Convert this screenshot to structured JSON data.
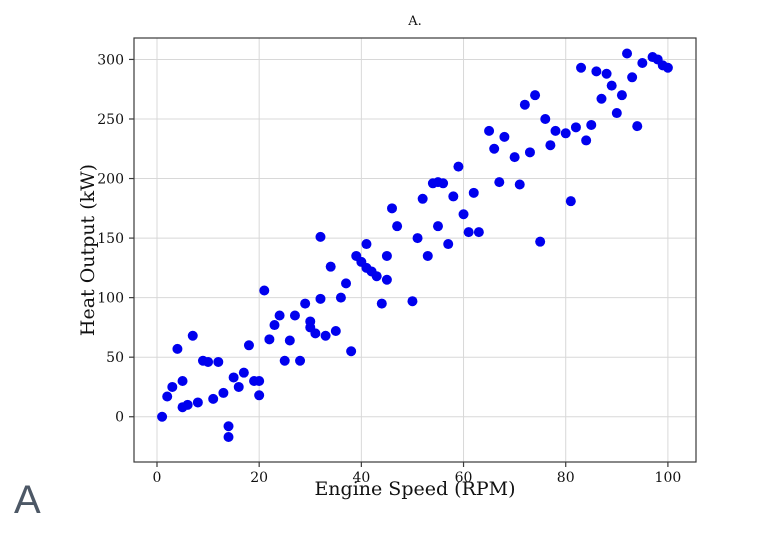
{
  "figure_label": "A",
  "chart_data": {
    "type": "scatter",
    "title": "A.",
    "xlabel": "Engine Speed (RPM)",
    "ylabel": "Heat Output (kW)",
    "xlim": [
      -4.5,
      105.5
    ],
    "ylim": [
      -38,
      318
    ],
    "xticks": [
      0,
      20,
      40,
      60,
      80,
      100
    ],
    "yticks": [
      0,
      50,
      100,
      150,
      200,
      250,
      300
    ],
    "grid": true,
    "grid_color": "#d8d8d8",
    "spine_color": "#3a3a3a",
    "point_color": "#0000ee",
    "legend": "none",
    "points": [
      [
        1,
        0
      ],
      [
        2,
        17
      ],
      [
        3,
        25
      ],
      [
        4,
        57
      ],
      [
        5,
        8
      ],
      [
        5,
        30
      ],
      [
        6,
        10
      ],
      [
        7,
        68
      ],
      [
        8,
        12
      ],
      [
        9,
        47
      ],
      [
        10,
        46
      ],
      [
        11,
        15
      ],
      [
        12,
        46
      ],
      [
        13,
        20
      ],
      [
        14,
        -8
      ],
      [
        14,
        -17
      ],
      [
        15,
        33
      ],
      [
        16,
        25
      ],
      [
        17,
        37
      ],
      [
        18,
        60
      ],
      [
        19,
        30
      ],
      [
        20,
        30
      ],
      [
        20,
        18
      ],
      [
        21,
        106
      ],
      [
        22,
        65
      ],
      [
        23,
        77
      ],
      [
        24,
        85
      ],
      [
        25,
        47
      ],
      [
        26,
        64
      ],
      [
        27,
        85
      ],
      [
        28,
        47
      ],
      [
        29,
        95
      ],
      [
        30,
        75
      ],
      [
        30,
        80
      ],
      [
        31,
        70
      ],
      [
        32,
        151
      ],
      [
        32,
        99
      ],
      [
        33,
        68
      ],
      [
        34,
        126
      ],
      [
        35,
        72
      ],
      [
        36,
        100
      ],
      [
        37,
        112
      ],
      [
        38,
        55
      ],
      [
        39,
        135
      ],
      [
        40,
        130
      ],
      [
        41,
        145
      ],
      [
        41,
        125
      ],
      [
        42,
        122
      ],
      [
        43,
        118
      ],
      [
        44,
        95
      ],
      [
        45,
        135
      ],
      [
        45,
        115
      ],
      [
        46,
        175
      ],
      [
        47,
        160
      ],
      [
        50,
        97
      ],
      [
        51,
        150
      ],
      [
        52,
        183
      ],
      [
        53,
        135
      ],
      [
        54,
        196
      ],
      [
        55,
        197
      ],
      [
        55,
        160
      ],
      [
        56,
        196
      ],
      [
        57,
        145
      ],
      [
        58,
        185
      ],
      [
        59,
        210
      ],
      [
        60,
        170
      ],
      [
        61,
        155
      ],
      [
        62,
        188
      ],
      [
        63,
        155
      ],
      [
        65,
        240
      ],
      [
        66,
        225
      ],
      [
        67,
        197
      ],
      [
        68,
        235
      ],
      [
        70,
        218
      ],
      [
        71,
        195
      ],
      [
        72,
        262
      ],
      [
        73,
        222
      ],
      [
        74,
        270
      ],
      [
        75,
        147
      ],
      [
        76,
        250
      ],
      [
        77,
        228
      ],
      [
        78,
        240
      ],
      [
        80,
        238
      ],
      [
        81,
        181
      ],
      [
        82,
        243
      ],
      [
        83,
        293
      ],
      [
        84,
        232
      ],
      [
        85,
        245
      ],
      [
        86,
        290
      ],
      [
        87,
        267
      ],
      [
        88,
        288
      ],
      [
        89,
        278
      ],
      [
        90,
        255
      ],
      [
        91,
        270
      ],
      [
        92,
        305
      ],
      [
        93,
        285
      ],
      [
        94,
        244
      ],
      [
        95,
        297
      ],
      [
        97,
        302
      ],
      [
        98,
        300
      ],
      [
        99,
        295
      ],
      [
        100,
        293
      ]
    ]
  }
}
